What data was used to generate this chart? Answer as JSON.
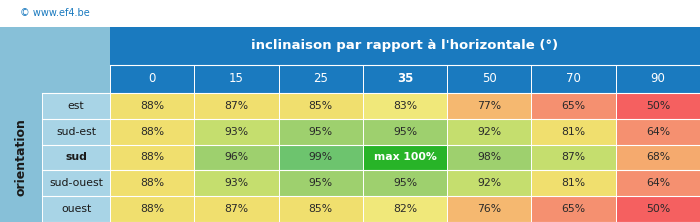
{
  "title": "inclinaison par rapport à l'horizontale (°)",
  "col_headers": [
    "0",
    "15",
    "25",
    "35",
    "50",
    "70",
    "90"
  ],
  "row_headers": [
    "est",
    "sud-est",
    "sud",
    "sud-ouest",
    "ouest"
  ],
  "values": [
    [
      "88%",
      "87%",
      "85%",
      "83%",
      "77%",
      "65%",
      "50%"
    ],
    [
      "88%",
      "93%",
      "95%",
      "95%",
      "92%",
      "81%",
      "64%"
    ],
    [
      "88%",
      "96%",
      "99%",
      "max 100%",
      "98%",
      "87%",
      "68%"
    ],
    [
      "88%",
      "93%",
      "95%",
      "95%",
      "92%",
      "81%",
      "64%"
    ],
    [
      "88%",
      "87%",
      "85%",
      "82%",
      "76%",
      "65%",
      "50%"
    ]
  ],
  "cell_colors": [
    [
      "#f0df6e",
      "#f0df6e",
      "#f0df6e",
      "#f0e87a",
      "#f5b870",
      "#f59070",
      "#f56060"
    ],
    [
      "#f0df6e",
      "#c5de6e",
      "#9ed06e",
      "#9ed06e",
      "#c5de6e",
      "#f0df6e",
      "#f59070"
    ],
    [
      "#f0df6e",
      "#9ed06e",
      "#6dc46e",
      "#28b428",
      "#9ed06e",
      "#c5de6e",
      "#f5aa6e"
    ],
    [
      "#f0df6e",
      "#c5de6e",
      "#9ed06e",
      "#9ed06e",
      "#c5de6e",
      "#f0df6e",
      "#f59070"
    ],
    [
      "#f0df6e",
      "#f0df6e",
      "#f0df6e",
      "#f0e87a",
      "#f5b870",
      "#f59070",
      "#f56060"
    ]
  ],
  "header_bg": "#1a7abf",
  "header_text": "#ffffff",
  "side_bg": "#87c0d8",
  "row_header_bg": "#a8d4e6",
  "orientation_label": "orientation",
  "copyright_text": "© www.ef4.be",
  "col_bold": [
    false,
    false,
    false,
    true,
    false,
    false,
    false
  ],
  "max_cell_row": 2,
  "max_cell_col": 3,
  "fig_width": 7.0,
  "fig_height": 2.22,
  "dpi": 100
}
